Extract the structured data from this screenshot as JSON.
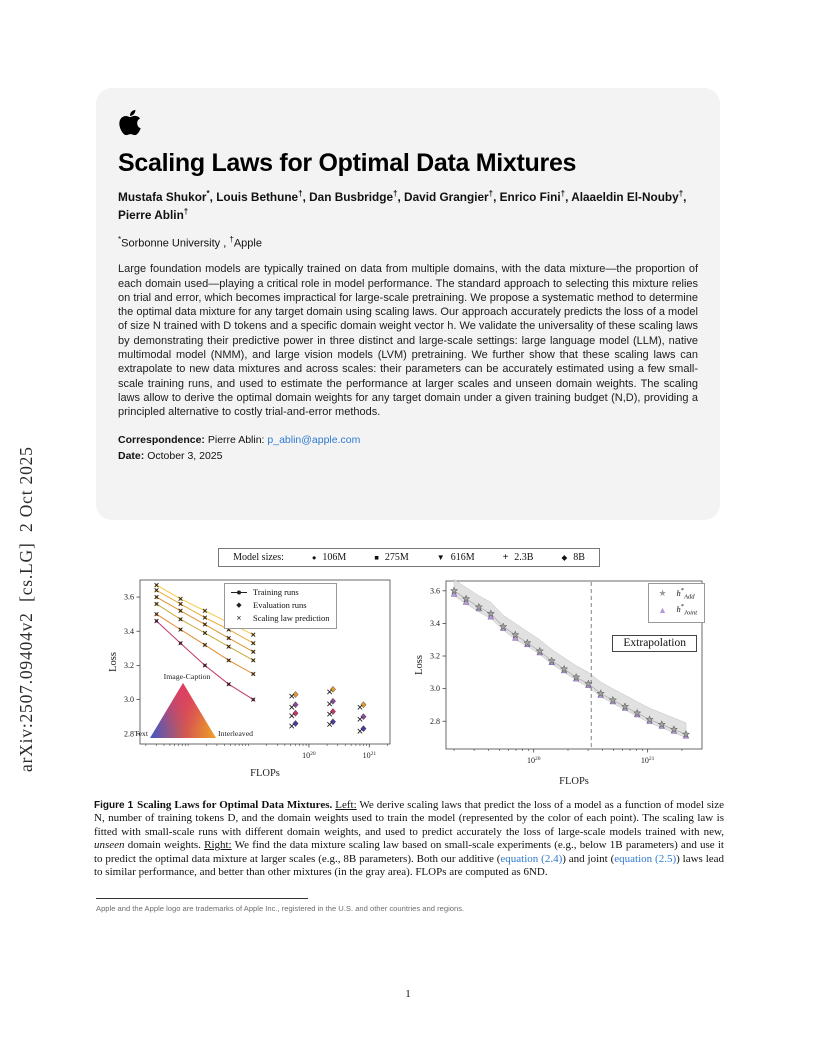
{
  "colors": {
    "link": "#2f7ad1",
    "card_bg": "#f3f3f4",
    "crimson": "#c2366b"
  },
  "watermark": "arXiv:2507.09404v2  [cs.LG]  2 Oct 2025",
  "paper": {
    "title": "Scaling Laws for Optimal Data Mixtures",
    "authors": [
      {
        "name": "Mustafa Shukor",
        "mark": "*"
      },
      {
        "name": "Louis Bethune",
        "mark": "†"
      },
      {
        "name": "Dan Busbridge",
        "mark": "†"
      },
      {
        "name": "David Grangier",
        "mark": "†"
      },
      {
        "name": "Enrico Fini",
        "mark": "†"
      },
      {
        "name": "Alaaeldin El-Nouby",
        "mark": "†"
      },
      {
        "name": "Pierre Ablin",
        "mark": "†"
      }
    ],
    "affiliations": [
      {
        "mark": "*",
        "name": "Sorbonne University"
      },
      {
        "mark": "†",
        "name": "Apple"
      }
    ],
    "abstract": "Large foundation models are typically trained on data from multiple domains, with the data mixture—the proportion of each domain used—playing a critical role in model performance. The standard approach to selecting this mixture relies on trial and error, which becomes impractical for large-scale pretraining. We propose a systematic method to determine the optimal data mixture for any target domain using scaling laws. Our approach accurately predicts the loss of a model of size N trained with D tokens and a specific domain weight vector h. We validate the universality of these scaling laws by demonstrating their predictive power in three distinct and large-scale settings: large language model (LLM), native multimodal model (NMM), and large vision models (LVM) pretraining. We further show that these scaling laws can extrapolate to new data mixtures and across scales: their parameters can be accurately estimated using a few small-scale training runs, and used to estimate the performance at larger scales and unseen domain weights. The scaling laws allow to derive the optimal domain weights for any target domain under a given training budget (N,D), providing a principled alternative to costly trial-and-error methods.",
    "correspondence": {
      "label": "Correspondence:",
      "name": "Pierre Ablin: ",
      "email": "p_ablin@apple.com"
    },
    "date": {
      "label": "Date:",
      "value": "October 3, 2025"
    }
  },
  "figure_legend": {
    "label": "Model sizes:",
    "items": [
      {
        "marker": "circle",
        "glyph": "●",
        "label": "106M"
      },
      {
        "marker": "square",
        "glyph": "■",
        "label": "275M"
      },
      {
        "marker": "triangle-down",
        "glyph": "▼",
        "label": "616M"
      },
      {
        "marker": "plus",
        "glyph": "+",
        "label": "2.3B"
      },
      {
        "marker": "diamond",
        "glyph": "◆",
        "label": "8B"
      }
    ]
  },
  "chart_data": [
    {
      "type": "line",
      "xlabel": "FLOPs",
      "ylabel": "Loss",
      "x_scale": "log",
      "x_range": [
        1.6e+17,
        2.2e+21
      ],
      "y_range": [
        2.74,
        3.7
      ],
      "x_ticks": [
        1e+20,
        1e+21
      ],
      "y_ticks": [
        2.8,
        3.0,
        3.2,
        3.4,
        3.6
      ],
      "legend": [
        "Training runs",
        "Evaluation runs",
        "Scaling law prediction"
      ],
      "triangle_labels": {
        "top": "Image-Caption",
        "left": "Text",
        "right": "Interleaved"
      },
      "training_x": [
        3e+17,
        7.5e+17,
        1.9e+18,
        4.7e+18,
        1.2e+19
      ],
      "training_runs": [
        {
          "color": "#f5c843",
          "loss": [
            3.67,
            3.59,
            3.52,
            3.45,
            3.38
          ]
        },
        {
          "color": "#e9ab38",
          "loss": [
            3.64,
            3.56,
            3.48,
            3.41,
            3.33
          ]
        },
        {
          "color": "#d9952f",
          "loss": [
            3.6,
            3.52,
            3.44,
            3.36,
            3.28
          ]
        },
        {
          "color": "#caa83e",
          "loss": [
            3.56,
            3.47,
            3.39,
            3.31,
            3.23
          ]
        },
        {
          "color": "#e08a2e",
          "loss": [
            3.5,
            3.41,
            3.32,
            3.23,
            3.15
          ]
        },
        {
          "color": "#c2366b",
          "loss": [
            3.46,
            3.33,
            3.2,
            3.09,
            3.0
          ]
        }
      ],
      "evaluation_runs": [
        {
          "x": 6e+19,
          "loss": 3.03,
          "color": "#e09a30"
        },
        {
          "x": 6e+19,
          "loss": 2.97,
          "color": "#8a4a9d"
        },
        {
          "x": 6e+19,
          "loss": 2.92,
          "color": "#c2366b"
        },
        {
          "x": 6e+19,
          "loss": 2.86,
          "color": "#4a3b9d"
        },
        {
          "x": 2.5e+20,
          "loss": 3.06,
          "color": "#e09a30"
        },
        {
          "x": 2.5e+20,
          "loss": 2.99,
          "color": "#8a4a9d"
        },
        {
          "x": 2.5e+20,
          "loss": 2.93,
          "color": "#c2366b"
        },
        {
          "x": 2.5e+20,
          "loss": 2.87,
          "color": "#4a3b9d"
        },
        {
          "x": 8e+20,
          "loss": 2.97,
          "color": "#e09a30"
        },
        {
          "x": 8e+20,
          "loss": 2.9,
          "color": "#8a4a9d"
        },
        {
          "x": 8e+20,
          "loss": 2.83,
          "color": "#4a3b9d"
        }
      ],
      "scaling_predictions": [
        {
          "x": 5.2e+19,
          "loss": 3.02
        },
        {
          "x": 5.2e+19,
          "loss": 2.955
        },
        {
          "x": 5.2e+19,
          "loss": 2.905
        },
        {
          "x": 5.2e+19,
          "loss": 2.845
        },
        {
          "x": 2.2e+20,
          "loss": 3.045
        },
        {
          "x": 2.2e+20,
          "loss": 2.975
        },
        {
          "x": 2.2e+20,
          "loss": 2.915
        },
        {
          "x": 2.2e+20,
          "loss": 2.855
        },
        {
          "x": 7e+20,
          "loss": 2.955
        },
        {
          "x": 7e+20,
          "loss": 2.885
        },
        {
          "x": 7e+20,
          "loss": 2.815
        }
      ]
    },
    {
      "type": "scatter",
      "xlabel": "FLOPs",
      "ylabel": "Loss",
      "x_scale": "log",
      "x_range": [
        1.7e+19,
        3e+21
      ],
      "y_range": [
        2.63,
        3.66
      ],
      "x_ticks": [
        1e+20,
        1e+21
      ],
      "y_ticks": [
        2.8,
        3.0,
        3.2,
        3.4,
        3.6
      ],
      "annotation": "Extrapolation",
      "extrapolation_line_x": 3.2e+20,
      "legend": [
        {
          "marker": "star",
          "base": "h",
          "sup": "*",
          "sub": "Add"
        },
        {
          "marker": "triangle",
          "base": "h",
          "sup": "*",
          "sub": "Joint"
        }
      ],
      "x": [
        2e+19,
        2.55e+19,
        3.3e+19,
        4.2e+19,
        5.4e+19,
        6.9e+19,
        8.8e+19,
        1.13e+20,
        1.44e+20,
        1.85e+20,
        2.36e+20,
        3.02e+20,
        3.87e+20,
        4.95e+20,
        6.33e+20,
        8.1e+20,
        1.04e+21,
        1.33e+21,
        1.7e+21,
        2.17e+21
      ],
      "h_add": [
        3.6,
        3.55,
        3.5,
        3.46,
        3.38,
        3.33,
        3.28,
        3.23,
        3.17,
        3.12,
        3.07,
        3.03,
        2.97,
        2.93,
        2.89,
        2.85,
        2.81,
        2.78,
        2.75,
        2.72
      ],
      "h_joint": [
        3.58,
        3.53,
        3.49,
        3.44,
        3.37,
        3.31,
        3.27,
        3.22,
        3.16,
        3.11,
        3.06,
        3.02,
        2.96,
        2.92,
        2.88,
        2.84,
        2.8,
        2.77,
        2.74,
        2.71
      ],
      "band_upper": [
        3.67,
        3.62,
        3.57,
        3.53,
        3.45,
        3.4,
        3.35,
        3.3,
        3.24,
        3.19,
        3.14,
        3.1,
        3.04,
        3.0,
        2.96,
        2.92,
        2.88,
        2.85,
        2.82,
        2.79
      ],
      "band_lower": [
        3.57,
        3.52,
        3.47,
        3.43,
        3.36,
        3.3,
        3.26,
        3.21,
        3.15,
        3.1,
        3.05,
        3.01,
        2.95,
        2.91,
        2.87,
        2.83,
        2.79,
        2.76,
        2.73,
        2.7
      ]
    }
  ],
  "caption": {
    "segments": [
      {
        "text": "Figure 1",
        "style": "figure-label"
      },
      {
        "text": "Scaling Laws for Optimal Data Mixtures.",
        "style": "bold"
      },
      {
        "text": " ",
        "style": "normal"
      },
      {
        "text": "Left:",
        "style": "underline"
      },
      {
        "text": " We derive scaling laws that predict the loss of a model as a function of model size N, number of training tokens D, and the domain weights used to train the model (represented by the color of each point). The scaling law is fitted with small-scale runs with different domain weights, and used to predict accurately the loss of large-scale models trained with new, ",
        "style": "normal"
      },
      {
        "text": "unseen",
        "style": "italic"
      },
      {
        "text": " domain weights. ",
        "style": "normal"
      },
      {
        "text": "Right:",
        "style": "underline"
      },
      {
        "text": " We find the data mixture scaling law based on small-scale experiments (e.g., below 1B parameters) and use it to predict the optimal data mixture at larger scales (e.g., 8B parameters). Both our additive (",
        "style": "normal"
      },
      {
        "text": "equation (2.4)",
        "style": "link"
      },
      {
        "text": ") and joint (",
        "style": "normal"
      },
      {
        "text": "equation (2.5)",
        "style": "link"
      },
      {
        "text": ") laws lead to similar performance, and better than other mixtures (in the gray area). FLOPs are computed as 6ND.",
        "style": "normal"
      }
    ]
  },
  "footnote": "Apple and the Apple logo are trademarks of Apple Inc., registered in the U.S. and other countries and regions.",
  "page_number": "1"
}
